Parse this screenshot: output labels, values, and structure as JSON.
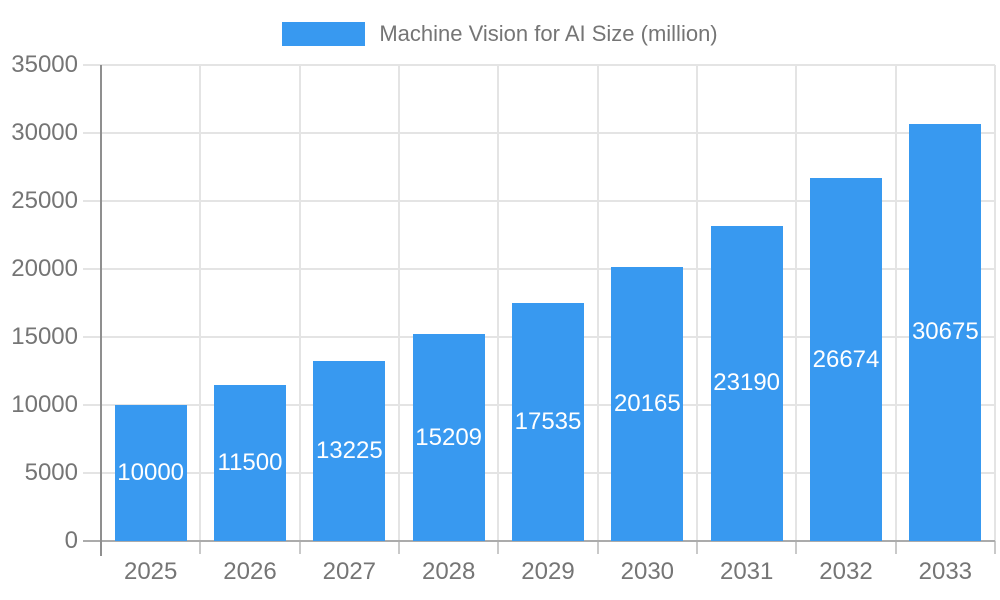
{
  "legend": {
    "label": "Machine Vision for AI Size (million)"
  },
  "chart_data": {
    "type": "bar",
    "title": "Machine Vision for AI Size (million)",
    "categories": [
      "2025",
      "2026",
      "2027",
      "2028",
      "2029",
      "2030",
      "2031",
      "2032",
      "2033"
    ],
    "values": [
      10000,
      11500,
      13225,
      15209,
      17535,
      20165,
      23190,
      26674,
      30675
    ],
    "series_name": "Machine Vision for AI Size (million)",
    "xlabel": "",
    "ylabel": "",
    "ylim": [
      0,
      35000
    ],
    "yticks": [
      0,
      5000,
      10000,
      15000,
      20000,
      25000,
      30000,
      35000
    ],
    "grid": "horizontal and vertical gridlines on",
    "legend_position": "top-center",
    "bar_value_labels": "inside, vertically centered, white",
    "colors": {
      "bar": "#3899F0",
      "axis_text": "#757575",
      "grid_line": "#e4e4e4",
      "x_axis_line": "#ababab",
      "y_axis_line": "#8f8f8f",
      "tick_line": "#c9c9c9",
      "bar_label_text": "#ffffff",
      "background": "#ffffff"
    }
  }
}
